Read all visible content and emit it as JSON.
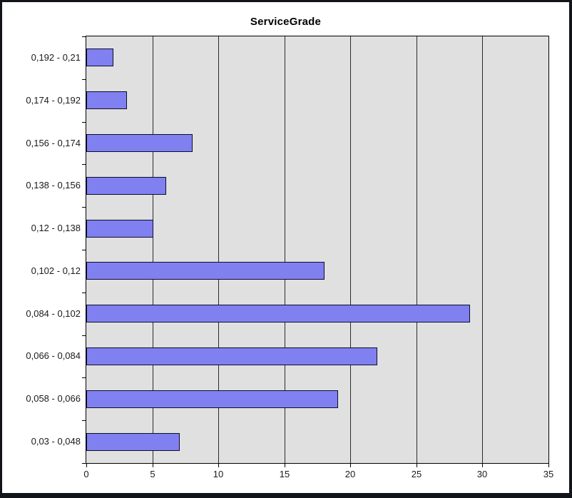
{
  "window": {
    "title": "ServiceGrade"
  },
  "chart_data": {
    "type": "bar",
    "orientation": "horizontal",
    "title": "ServiceGrade",
    "xlabel": "",
    "ylabel": "",
    "categories": [
      "0,192 - 0,21",
      "0,174 - 0,192",
      "0,156 - 0,174",
      "0,138 - 0,156",
      "0,12 - 0,138",
      "0,102 - 0,12",
      "0,084 - 0,102",
      "0,066 - 0,084",
      "0,058 - 0,066",
      "0,03 - 0,048"
    ],
    "values": [
      2,
      3,
      8,
      6,
      5,
      18,
      29,
      22,
      19,
      7
    ],
    "xlim": [
      0,
      35
    ],
    "xticks": [
      0,
      5,
      10,
      15,
      20,
      25,
      30,
      35
    ],
    "grid": true,
    "legend": false,
    "colors": {
      "bar_fill": "#8080F0",
      "bar_border": "#0D0D2B",
      "plot_bg": "#E0E0E0",
      "grid_line": "#2B2B2B",
      "axis_border": "#000000",
      "label": "#1A1A1A",
      "frame_border": "#111418",
      "background": "#FFFFFF"
    }
  }
}
